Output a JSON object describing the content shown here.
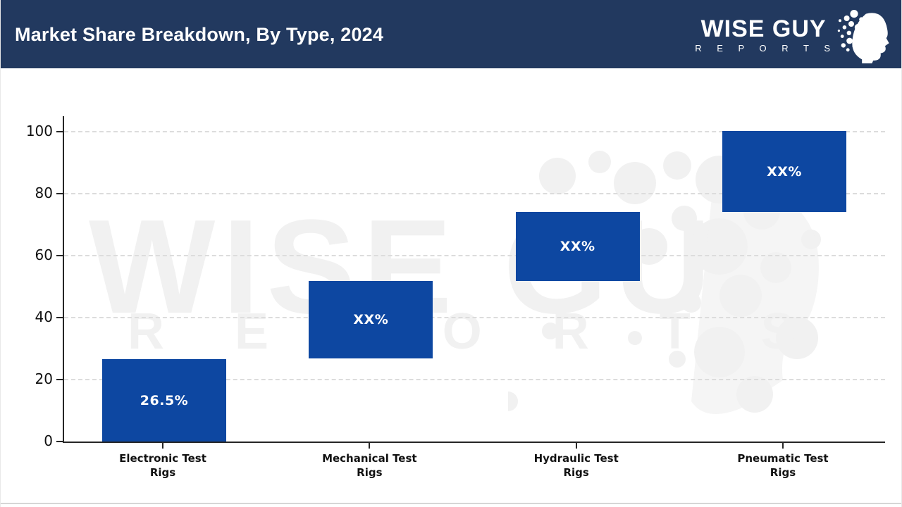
{
  "header": {
    "title": "Market Share Breakdown, By Type, 2024",
    "bg_color": "#22395f",
    "logo": {
      "line1": "WISE GUY",
      "line2": "R E P O R T S"
    }
  },
  "watermark": {
    "line1": "WISE GU",
    "line2": "R E P O R T S"
  },
  "chart_data": {
    "type": "bar",
    "subtype": "waterfall",
    "title": "Market Share Breakdown, By Type, 2024",
    "xlabel": "",
    "ylabel": "",
    "categories": [
      "Electronic Test Rigs",
      "Mechanical Test Rigs",
      "Hydraulic Test Rigs",
      "Pneumatic Test Rigs"
    ],
    "categories_display": [
      [
        "Electronic Test",
        "Rigs"
      ],
      [
        "Mechanical Test",
        "Rigs"
      ],
      [
        "Hydraulic Test",
        "Rigs"
      ],
      [
        "Pneumatic Test",
        "Rigs"
      ]
    ],
    "segments": [
      {
        "start": 0,
        "end": 26.5,
        "label": "26.5%"
      },
      {
        "start": 26.8,
        "end": 51.8,
        "label": "XX%"
      },
      {
        "start": 51.8,
        "end": 74.1,
        "label": "XX%"
      },
      {
        "start": 74.1,
        "end": 100.2,
        "label": "XX%"
      }
    ],
    "yticks": [
      0,
      20,
      40,
      60,
      80,
      100
    ],
    "ylim": [
      0,
      105
    ],
    "grid": "horizontal-dashed",
    "legend": "none",
    "colors": {
      "bar": "#0d47a1",
      "bar_label": "#ffffff",
      "axis": "#262626",
      "gridline": "#dcdcdc",
      "tick_text": "#111111",
      "header_bg": "#22395f",
      "watermark": "#f1f1f1"
    }
  }
}
